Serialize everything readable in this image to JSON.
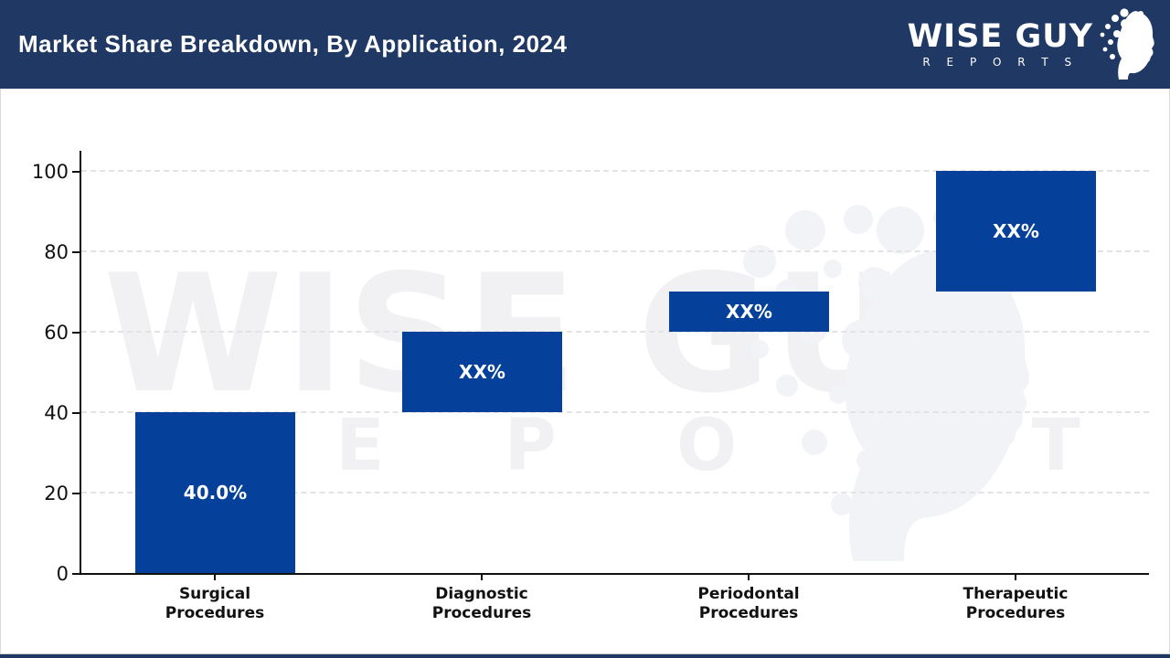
{
  "header": {
    "title": "Market Share Breakdown, By Application, 2024",
    "logo": {
      "line1": "WISE GUY",
      "line2": "R E P O R T S"
    }
  },
  "watermark": {
    "line1": "WISE GUY",
    "line2": "R E P O R T S"
  },
  "chart_data": {
    "type": "bar",
    "subtype": "waterfall",
    "title": "Market Share Breakdown, By Application, 2024",
    "categories": [
      "Surgical Procedures",
      "Diagnostic Procedures",
      "Periodontal Procedures",
      "Therapeutic Procedures"
    ],
    "bars": [
      {
        "category": "Surgical Procedures",
        "start": 0,
        "end": 40,
        "label": "40.0%"
      },
      {
        "category": "Diagnostic Procedures",
        "start": 40,
        "end": 60,
        "label": "XX%"
      },
      {
        "category": "Periodontal Procedures",
        "start": 60,
        "end": 70,
        "label": "XX%"
      },
      {
        "category": "Therapeutic Procedures",
        "start": 70,
        "end": 100,
        "label": "XX%"
      }
    ],
    "values_pct": [
      40,
      20,
      10,
      30
    ],
    "y_ticks": [
      0,
      20,
      40,
      60,
      80,
      100
    ],
    "ylim": [
      0,
      105
    ],
    "xlabel": "",
    "ylabel": "",
    "grid": "horizontal-dashed",
    "legend": "none",
    "bar_color": "#05419B",
    "bar_label_color": "#ffffff"
  },
  "colors": {
    "header_bg": "#1F3864",
    "bar": "#05419B",
    "grid": "#e3e3e3",
    "axis": "#111111",
    "watermark": "#f1f1f4",
    "border": "#d9d9d9"
  }
}
